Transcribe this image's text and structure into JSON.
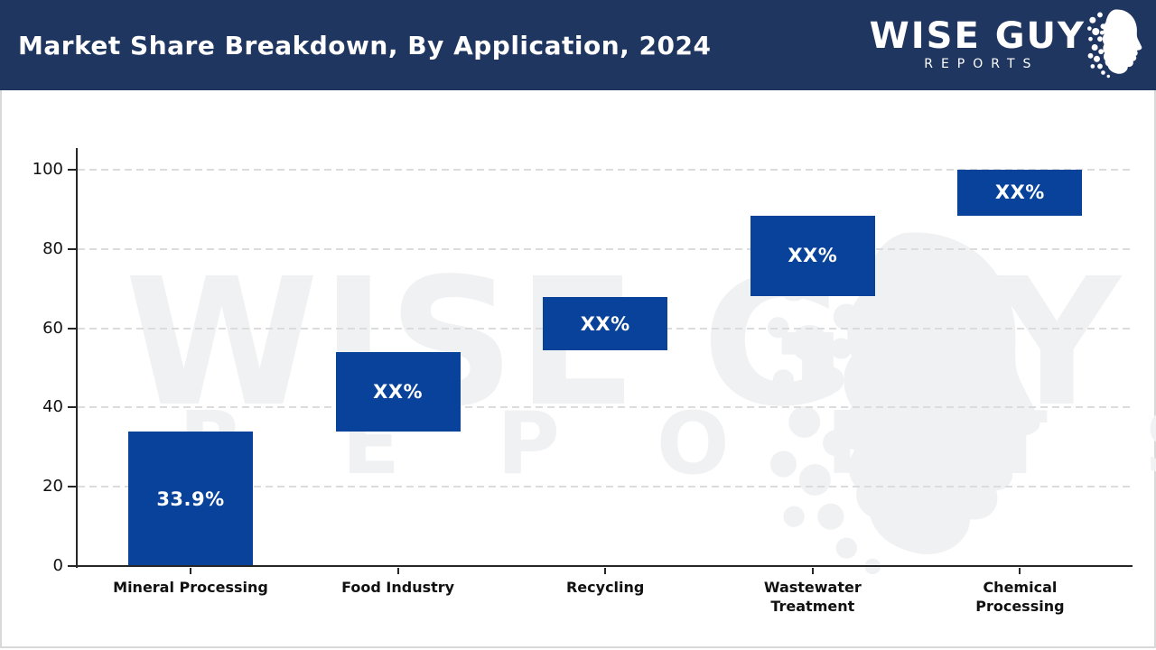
{
  "header": {
    "title": "Market Share Breakdown, By Application, 2024",
    "logo": {
      "brand_line1": "WISE GUY",
      "brand_line2": "REPORTS"
    }
  },
  "watermark": {
    "line1": "WISE GUY",
    "line2": "R E P O R T S"
  },
  "colors": {
    "header_bg": "#1f3660",
    "bar_blue": "#08429a",
    "axis": "#262626",
    "grid": "#dcdcdc",
    "watermark_gray": "#f0f1f3"
  },
  "chart_data": {
    "type": "bar",
    "subtype": "waterfall",
    "title": "Market Share Breakdown, By Application, 2024",
    "xlabel": "",
    "ylabel": "",
    "ylim": [
      0,
      105
    ],
    "yticks": [
      0,
      20,
      40,
      60,
      80,
      100
    ],
    "grid": "horizontal-dashed",
    "legend": "none",
    "categories": [
      "Mineral Processing",
      "Food Industry",
      "Recycling",
      "Wastewater\nTreatment",
      "Chemical\nProcessing"
    ],
    "segments": [
      {
        "category": "Mineral Processing",
        "start": 0,
        "end": 33.9,
        "label": "33.9%"
      },
      {
        "category": "Food Industry",
        "start": 33.9,
        "end": 54.0,
        "label": "XX%"
      },
      {
        "category": "Recycling",
        "start": 54.4,
        "end": 67.9,
        "label": "XX%"
      },
      {
        "category": "Wastewater Treatment",
        "start": 68.1,
        "end": 88.4,
        "label": "XX%"
      },
      {
        "category": "Chemical Processing",
        "start": 88.4,
        "end": 100,
        "label": "XX%"
      }
    ]
  }
}
